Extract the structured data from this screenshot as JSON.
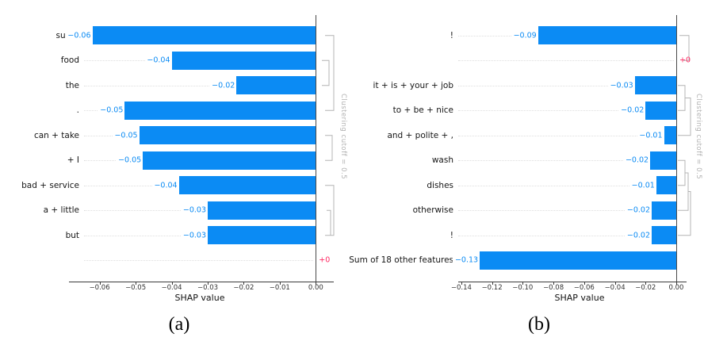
{
  "figure": {
    "description": "SHAP value bar charts with hierarchical clustering brackets",
    "bar_color": "#0b8bf4",
    "value_label_color": "#0b8bf4",
    "zero_value_color": "#ff2a63",
    "dendrogram_color": "#b4b4b4",
    "cluster_annotation": "Clustering cutoff = 0.5"
  },
  "chart_data": [
    {
      "type": "bar",
      "caption": "(a)",
      "xlabel": "SHAP value",
      "annotation": "Clustering cutoff = 0.5",
      "xlim": [
        -0.0685,
        0.005
      ],
      "xticks": [
        -0.06,
        -0.05,
        -0.04,
        -0.03,
        -0.02,
        -0.01,
        0.0
      ],
      "xtick_labels": [
        "−0.06",
        "−0.05",
        "−0.04",
        "−0.03",
        "−0.02",
        "−0.01",
        "0.00"
      ],
      "legend": "none",
      "grid": "off",
      "rows": [
        {
          "label": "sucks",
          "value": -0.062,
          "display": "−0.06"
        },
        {
          "label": "food",
          "value": -0.04,
          "display": "−0.04"
        },
        {
          "label": "the",
          "value": -0.022,
          "display": "−0.02"
        },
        {
          "label": ".",
          "value": -0.053,
          "display": "−0.05"
        },
        {
          "label": "can + take",
          "value": -0.049,
          "display": "−0.05"
        },
        {
          "label": "+ I",
          "value": -0.048,
          "display": "−0.05"
        },
        {
          "label": "bad + service",
          "value": -0.038,
          "display": "−0.04"
        },
        {
          "label": "a + little",
          "value": -0.03,
          "display": "−0.03"
        },
        {
          "label": "but",
          "value": -0.03,
          "display": "−0.03"
        },
        {
          "label": "",
          "value": 0,
          "display": "+0"
        }
      ]
    },
    {
      "type": "bar",
      "caption": "(b)",
      "xlabel": "SHAP value",
      "annotation": "Clustering cutoff = 0.5",
      "xlim": [
        -0.142,
        0.0067
      ],
      "xticks": [
        -0.14,
        -0.12,
        -0.1,
        -0.08,
        -0.06,
        -0.04,
        -0.02,
        0.0
      ],
      "xtick_labels": [
        "−0.14",
        "−0.12",
        "−0.10",
        "−0.08",
        "−0.06",
        "−0.04",
        "−0.02",
        "0.00"
      ],
      "legend": "none",
      "grid": "off",
      "rows": [
        {
          "label": "!",
          "value": -0.09,
          "display": "−0.09"
        },
        {
          "label": "",
          "value": 0,
          "display": "+0"
        },
        {
          "label": "it + is + your + job",
          "value": -0.027,
          "display": "−0.03"
        },
        {
          "label": "to + be + nice",
          "value": -0.02,
          "display": "−0.02"
        },
        {
          "label": "and + polite + ,",
          "value": -0.008,
          "display": "−0.01"
        },
        {
          "label": "wash",
          "value": -0.017,
          "display": "−0.02"
        },
        {
          "label": "dishes",
          "value": -0.013,
          "display": "−0.01"
        },
        {
          "label": "otherwise",
          "value": -0.016,
          "display": "−0.02"
        },
        {
          "label": "!",
          "value": -0.016,
          "display": "−0.02"
        },
        {
          "label": "Sum of 18 other features",
          "value": -0.128,
          "display": "−0.13"
        }
      ]
    }
  ]
}
